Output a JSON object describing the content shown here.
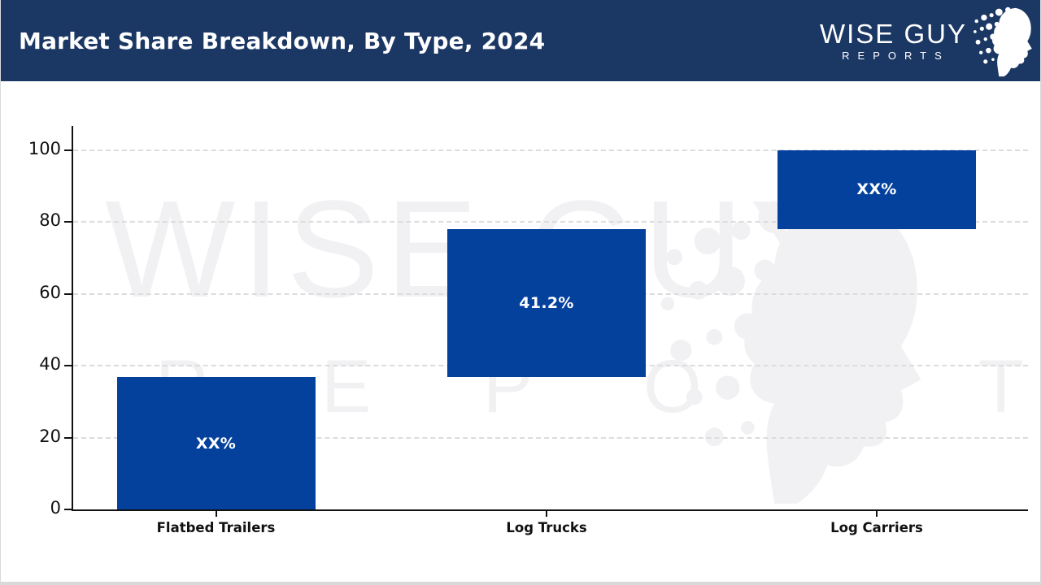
{
  "header": {
    "title": "Market Share Breakdown, By Type, 2024",
    "logo": {
      "wordmark": "WISE GUY",
      "subtitle": "REPORTS"
    },
    "background": "#1b3764"
  },
  "watermark": {
    "wordmark": "WISE GUY",
    "subtitle": "R E P O R T S"
  },
  "chart_data": {
    "type": "bar",
    "subtype": "floating-segment-bar",
    "title": "Market Share Breakdown, By Type, 2024",
    "categories": [
      "Flatbed Trailers",
      "Log Trucks",
      "Log Carriers"
    ],
    "bars": [
      {
        "category": "Flatbed Trailers",
        "start": 0,
        "end": 36.8,
        "label": "XX%"
      },
      {
        "category": "Log Trucks",
        "start": 36.8,
        "end": 78.0,
        "label": "41.2%"
      },
      {
        "category": "Log Carriers",
        "start": 78.0,
        "end": 100,
        "label": "XX%"
      }
    ],
    "ylim": [
      0,
      100
    ],
    "yticks": [
      0,
      20,
      40,
      60,
      80,
      100
    ],
    "xlabel": "",
    "ylabel": "",
    "grid": "horizontal-dashed",
    "legend": "none",
    "colors": {
      "bar": "#04419d",
      "bar_label": "#ffffff",
      "grid": "#dcdcdc",
      "axis": "#111111",
      "header_bg": "#1b3764",
      "watermark": "#f1f1f3"
    }
  }
}
